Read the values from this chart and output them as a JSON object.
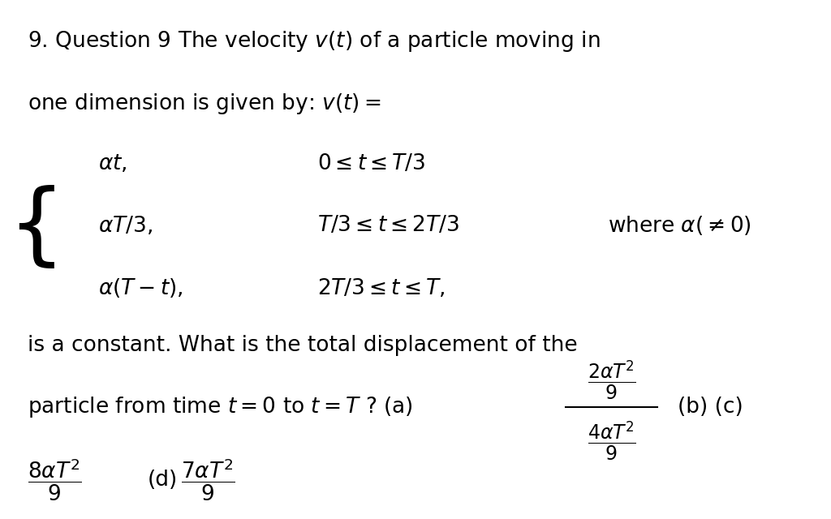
{
  "background_color": "#ffffff",
  "text_color": "#000000",
  "figsize": [
    10.24,
    6.4
  ],
  "dpi": 100,
  "line1": "9. Question 9 The velocity $v(t)$ of a particle moving in",
  "line2": "one dimension is given by: $v(t) =$",
  "case1_expr": "$\\alpha t,$",
  "case1_cond": "$0 \\leq t \\leq T/3$",
  "case2_expr": "$\\alpha T/3,$",
  "case2_cond": "$T/3 \\leq t \\leq 2T/3$",
  "case2_note": "where $\\alpha(\\neq 0)$",
  "case3_expr": "$\\alpha(T - t),$",
  "case3_cond": "$2T/3 \\leq t \\leq T,$",
  "line_const": "is a constant. What is the total displacement of the",
  "line_particle1": "particle from time $t = 0$ to $t = T$ ? (a)",
  "frac_num": "$\\dfrac{2\\alpha T^2}{9}$",
  "frac_den": "$\\dfrac{4\\alpha T^2}{9}$",
  "part_bc": "(b) (c)",
  "last_line_a": "$\\dfrac{8\\alpha T^2}{9}$",
  "last_line_d": "(d)",
  "last_line_b": "$\\dfrac{7\\alpha T^2}{9}$"
}
